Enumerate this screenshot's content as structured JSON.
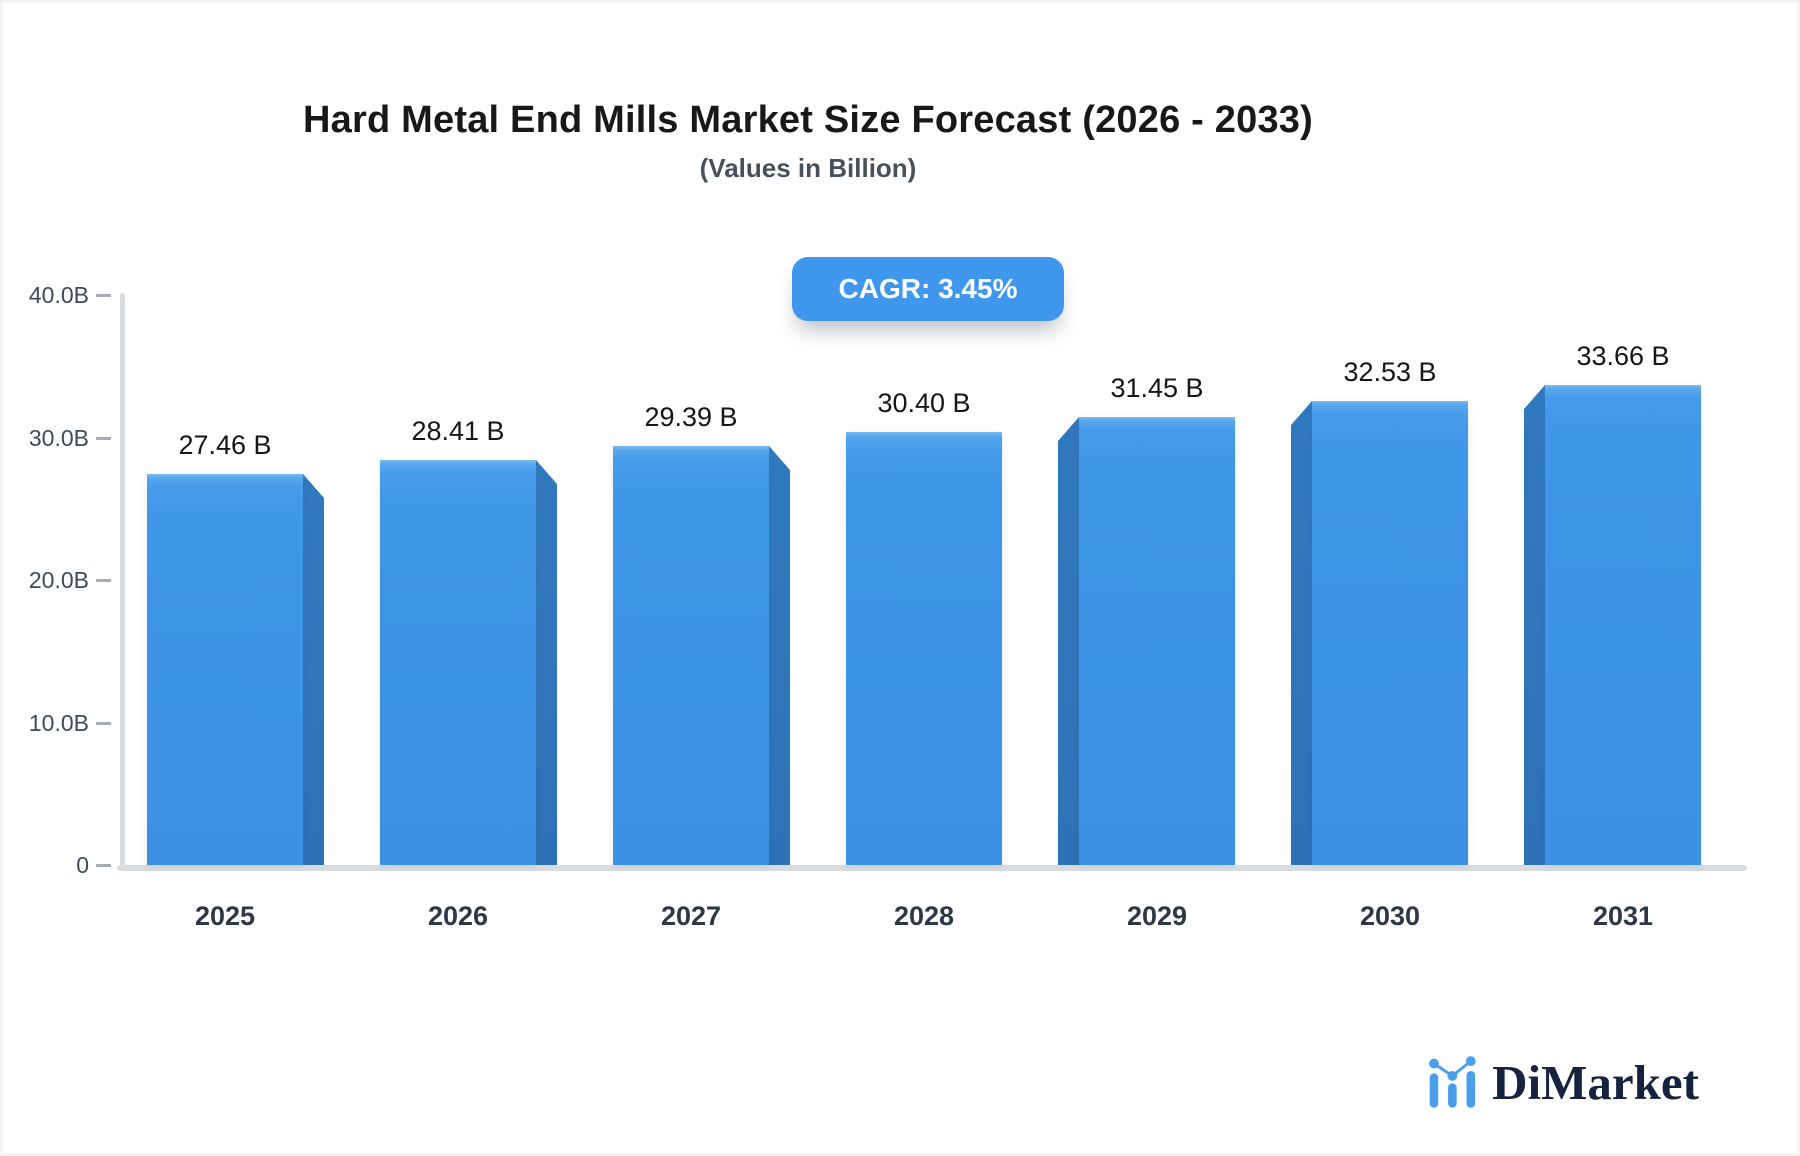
{
  "header": {
    "title": "Hard Metal End Mills Market Size Forecast (2026 - 2033)",
    "subtitle": "(Values in Billion)",
    "cagr_badge": "CAGR: 3.45%"
  },
  "chart_data": {
    "type": "bar",
    "title": "Hard Metal End Mills Market Size Forecast (2026 - 2033)",
    "subtitle": "(Values in Billion)",
    "cagr_percent": 3.45,
    "categories": [
      "2025",
      "2026",
      "2027",
      "2028",
      "2029",
      "2030",
      "2031"
    ],
    "values": [
      27.46,
      28.41,
      29.39,
      30.4,
      31.45,
      32.53,
      33.66
    ],
    "value_labels": [
      "27.46 B",
      "28.41 B",
      "29.39 B",
      "30.40 B",
      "31.45 B",
      "32.53 B",
      "33.66 B"
    ],
    "yticks": [
      {
        "label": "40.0B",
        "value": 40
      },
      {
        "label": "30.0B",
        "value": 30
      },
      {
        "label": "20.0B",
        "value": 20
      },
      {
        "label": "10.0B",
        "value": 10
      },
      {
        "label": "0",
        "value": 0
      }
    ],
    "ylim": [
      0,
      40
    ],
    "xlabel": "",
    "ylabel": "",
    "grid": false,
    "legend": false,
    "bar_front_color": "#3e96e7",
    "bar_side_color": "#2d72b7",
    "badge_color": "#4097ee"
  },
  "footer": {
    "brand": "DiMarket",
    "logo_icon": "bar-line-chart-icon",
    "brand_color": "#16233f",
    "icon_color": "#4b9fea"
  }
}
